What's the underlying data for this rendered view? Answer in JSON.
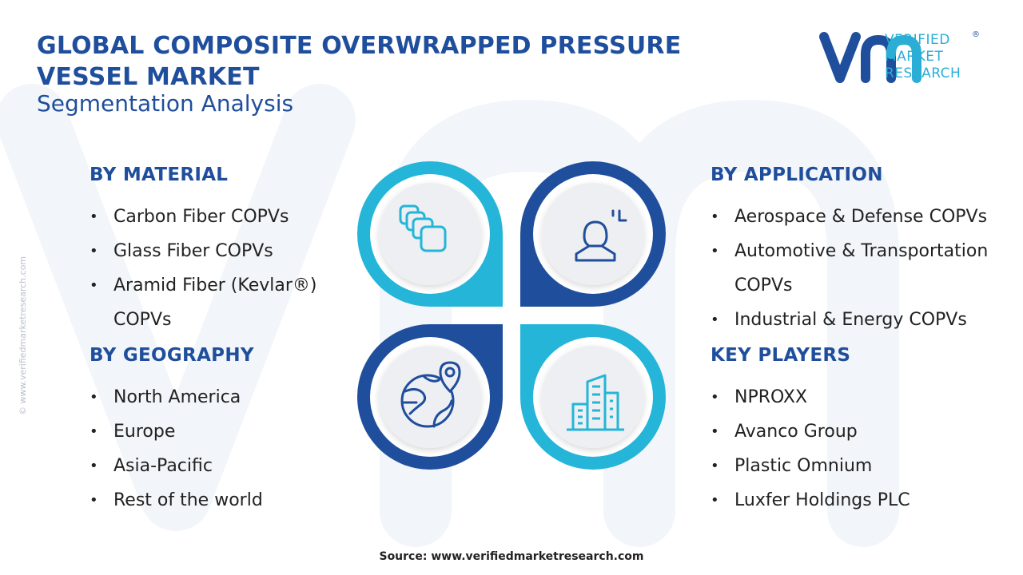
{
  "header": {
    "title_line1": "GLOBAL COMPOSITE OVERWRAPPED PRESSURE",
    "title_line2": "VESSEL MARKET",
    "subtitle": "Segmentation Analysis"
  },
  "logo": {
    "line1": "VERIFIED",
    "line2": "MARKET",
    "line3": "RESEARCH",
    "registered": "®"
  },
  "side_credit": "© www.verifiedmarketresearch.com",
  "segments": {
    "material": {
      "heading": "BY MATERIAL",
      "items": [
        "Carbon Fiber COPVs",
        "Glass Fiber COPVs",
        "Aramid Fiber (Kevlar®)",
        "COPVs"
      ]
    },
    "geography": {
      "heading": "BY GEOGRAPHY",
      "items": [
        "North America",
        "Europe",
        "Asia-Pacific",
        "Rest of the world"
      ]
    },
    "application": {
      "heading": "BY APPLICATION",
      "items": [
        "Aerospace & Defense COPVs",
        "Automotive & Transportation",
        "COPVs",
        "Industrial & Energy COPVs"
      ]
    },
    "players": {
      "heading": "KEY PLAYERS",
      "items": [
        "NPROXX",
        "Avanco Group",
        "Plastic Omnium",
        "Luxfer Holdings PLC"
      ]
    }
  },
  "icons": {
    "top_left": "layered-cards-icon",
    "top_right": "person-presentation-icon",
    "bottom_left": "globe-location-icon",
    "bottom_right": "city-buildings-icon"
  },
  "colors": {
    "navy": "#1f4e9c",
    "cyan": "#24b5d8",
    "text": "#222222"
  },
  "footer": {
    "source": "Source: www.verifiedmarketresearch.com"
  }
}
